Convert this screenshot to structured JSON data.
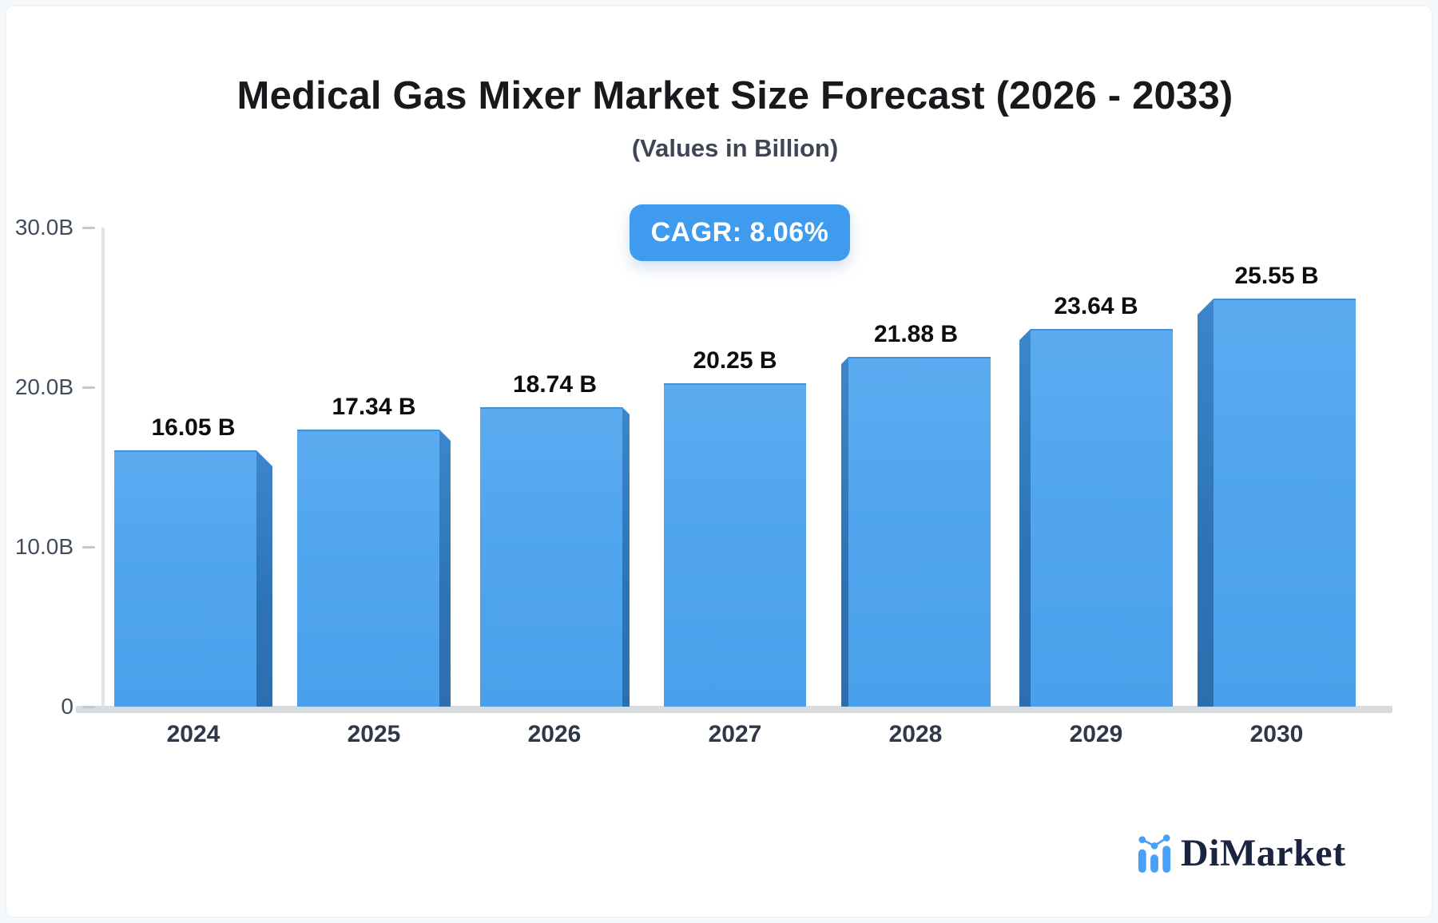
{
  "header": {
    "title": "Medical Gas Mixer Market Size Forecast (2026 - 2033)",
    "subtitle": "(Values in Billion)"
  },
  "badge": {
    "label": "CAGR: 8.06%"
  },
  "chart_data": {
    "type": "bar",
    "title": "Medical Gas Mixer Market Size Forecast (2026 - 2033)",
    "subtitle": "(Values in Billion)",
    "categories": [
      "2024",
      "2025",
      "2026",
      "2027",
      "2028",
      "2029",
      "2030"
    ],
    "values": [
      16.05,
      17.34,
      18.74,
      20.25,
      21.88,
      23.64,
      25.55
    ],
    "value_labels": [
      "16.05 B",
      "17.34 B",
      "18.74 B",
      "20.25 B",
      "21.88 B",
      "23.64 B",
      "25.55 B"
    ],
    "xlabel": "",
    "ylabel": "",
    "ylim": [
      0,
      30
    ],
    "yticks": [
      {
        "value": 0,
        "label": "0"
      },
      {
        "value": 10,
        "label": "10.0B"
      },
      {
        "value": 20,
        "label": "20.0B"
      },
      {
        "value": 30,
        "label": "30.0B"
      }
    ],
    "grid": false,
    "legend": false,
    "style": "pseudo-3d bars, side faces angled toward center column",
    "bar_color": "#51a6ee",
    "bar_side_color": "#2e73b6"
  },
  "branding": {
    "name": "DiMarket",
    "icon": "mini-bar-chart-icon",
    "icon_color": "#4aa0f5",
    "text_color": "#1a2440"
  },
  "colors": {
    "page_background": "#f5f8fa",
    "card_background": "#ffffff",
    "badge_background": "#3f9bed",
    "badge_text": "#ffffff",
    "title_text": "#17191d",
    "subtitle_text": "#3e4656",
    "axis_line": "#e1e4e8",
    "baseline": "#d8dcdf",
    "tick_text": "#414c5c"
  }
}
